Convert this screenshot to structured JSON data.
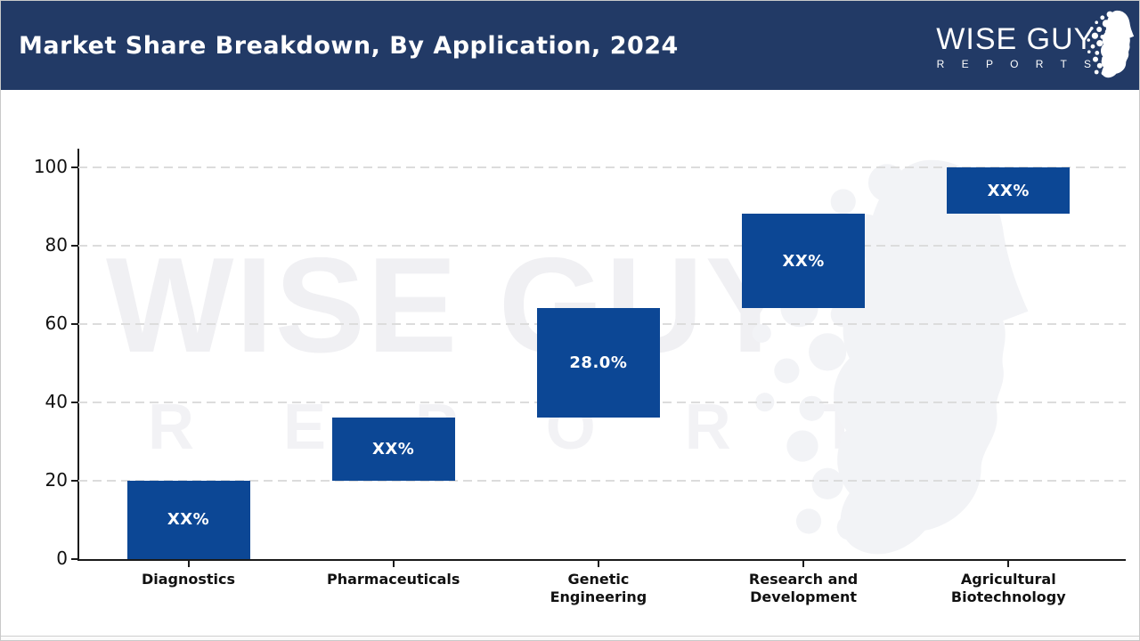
{
  "header": {
    "title": "Market Share Breakdown, By Application, 2024",
    "logo": {
      "name": "WISE GUY",
      "sub": "R E P O R T S"
    }
  },
  "watermark": {
    "name": "WISE GUY",
    "sub": "R E P O R T S"
  },
  "chart_data": {
    "type": "bar",
    "subtype": "waterfall",
    "title": "Market Share Breakdown, By Application, 2024",
    "categories": [
      "Diagnostics",
      "Pharmaceuticals",
      "Genetic\nEngineering",
      "Research and\nDevelopment",
      "Agricultural\nBiotechnology"
    ],
    "segments": [
      {
        "category": "Diagnostics",
        "start": 0,
        "end": 20,
        "label": "XX%"
      },
      {
        "category": "Pharmaceuticals",
        "start": 20,
        "end": 36,
        "label": "XX%"
      },
      {
        "category": "Genetic Engineering",
        "start": 36,
        "end": 64,
        "label": "28.0%"
      },
      {
        "category": "Research and Development",
        "start": 64,
        "end": 88,
        "label": "XX%"
      },
      {
        "category": "Agricultural Biotechnology",
        "start": 88,
        "end": 100,
        "label": "XX%"
      }
    ],
    "yticks": [
      0,
      20,
      40,
      60,
      80,
      100
    ],
    "ylim": [
      0,
      105
    ],
    "xlabel": "",
    "ylabel": "",
    "grid": "horizontal-dashed",
    "legend": "none",
    "bar_color": "#0c4795",
    "bar_label_color": "#ffffff",
    "axis_color": "#1a1a1a",
    "grid_color": "#dcdcdc"
  },
  "colors": {
    "header_bg": "#223a66",
    "bar": "#0c4795",
    "watermark": "#f0f0f3",
    "frame": "#c9c9c9"
  }
}
